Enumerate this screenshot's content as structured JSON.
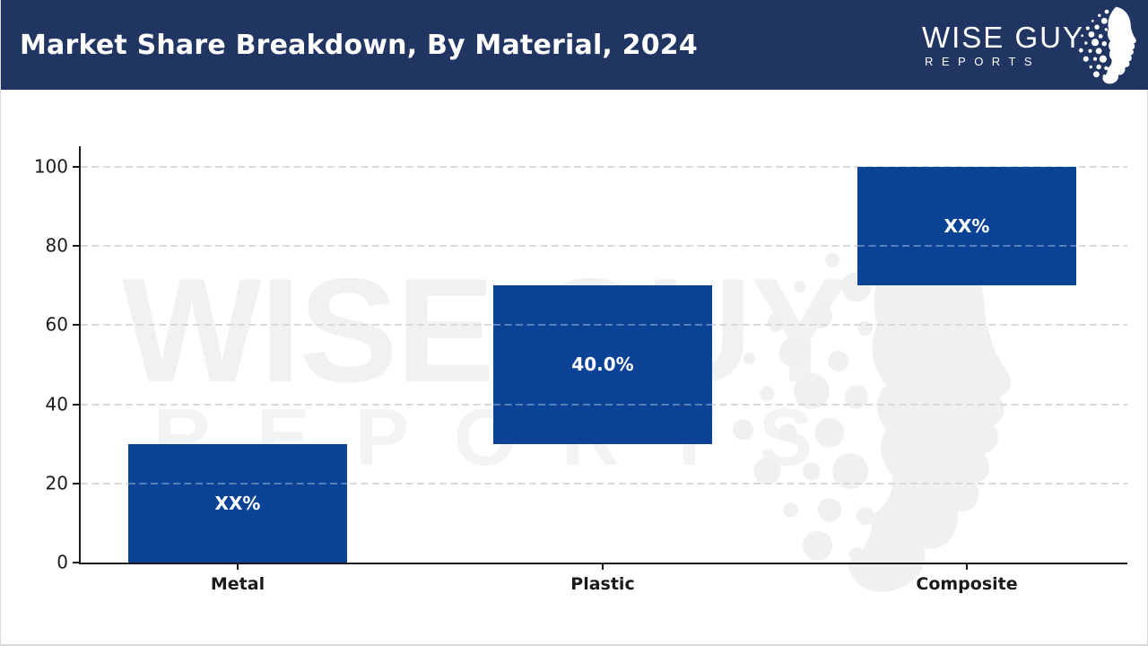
{
  "header": {
    "title": "Market Share Breakdown, By Material, 2024",
    "bg_color": "#203561",
    "logo": {
      "line1": "WISE GUY",
      "line2": "REPORTS"
    }
  },
  "watermark": {
    "line1": "WISE GUY",
    "line2": "REPORTS"
  },
  "chart_data": {
    "type": "bar",
    "subtype": "waterfall",
    "title": "Market Share Breakdown, By Material, 2024",
    "categories": [
      "Metal",
      "Plastic",
      "Composite"
    ],
    "segments": [
      {
        "category": "Metal",
        "start": 0,
        "end": 30,
        "label": "XX%"
      },
      {
        "category": "Plastic",
        "start": 30,
        "end": 70,
        "label": "40.0%"
      },
      {
        "category": "Composite",
        "start": 70,
        "end": 100,
        "label": "XX%"
      }
    ],
    "ylim": [
      0,
      100
    ],
    "yticks": [
      0,
      20,
      40,
      60,
      80,
      100
    ],
    "xlabel": "",
    "ylabel": "",
    "grid": "dashed-horizontal",
    "legend": "none",
    "bar_color": "#0a4396",
    "bar_label_color": "#ffffff",
    "grid_color": "#d9d9d9",
    "axis_color": "#1a1a1a",
    "tick_label_color": "#1a1a1a"
  }
}
